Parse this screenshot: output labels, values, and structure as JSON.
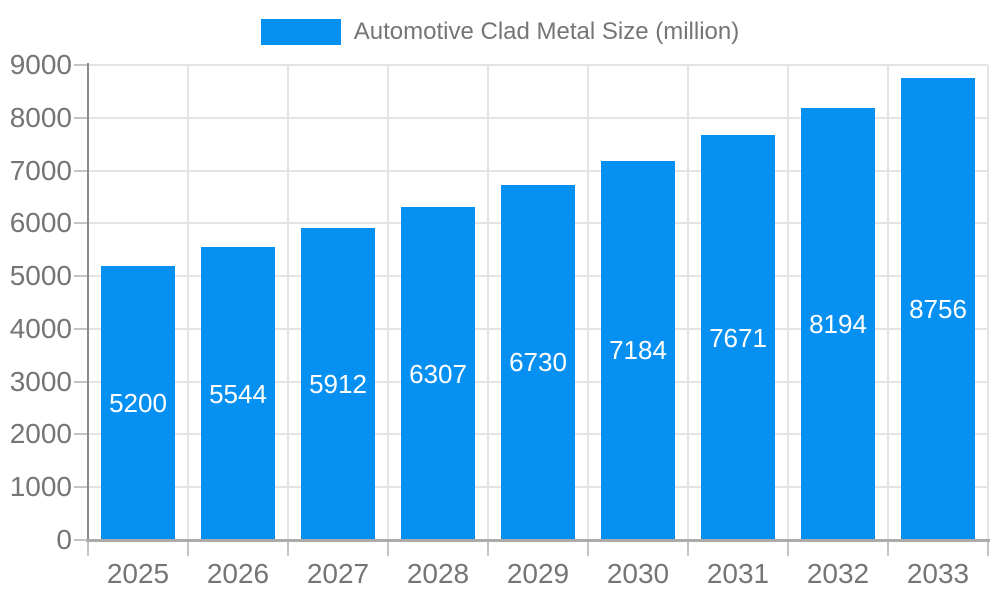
{
  "chart_data": {
    "type": "bar",
    "title": "Automotive Clad Metal Size (million)",
    "categories": [
      "2025",
      "2026",
      "2027",
      "2028",
      "2029",
      "2030",
      "2031",
      "2032",
      "2033"
    ],
    "values": [
      5200,
      5544,
      5912,
      6307,
      6730,
      7184,
      7671,
      8194,
      8756
    ],
    "series": [
      {
        "name": "Automotive Clad Metal Size (million)",
        "values": [
          5200,
          5544,
          5912,
          6307,
          6730,
          7184,
          7671,
          8194,
          8756
        ]
      }
    ],
    "xlabel": "",
    "ylabel": "",
    "ylim": [
      0,
      9000
    ],
    "yticks": [
      0,
      1000,
      2000,
      3000,
      4000,
      5000,
      6000,
      7000,
      8000,
      9000
    ],
    "grid": true,
    "legend_position": "top-center",
    "colors": {
      "bar": "#0590F2",
      "value_label": "#FFFFFF",
      "axis_text": "#757575",
      "gridline": "#E4E4E4",
      "tick": "#C4C4C4",
      "y_axis_line": "#8A8A8A",
      "x_axis_line": "#ABABAB",
      "background": "#FFFFFF"
    }
  },
  "legend": {
    "label": "Automotive Clad Metal Size (million)"
  }
}
